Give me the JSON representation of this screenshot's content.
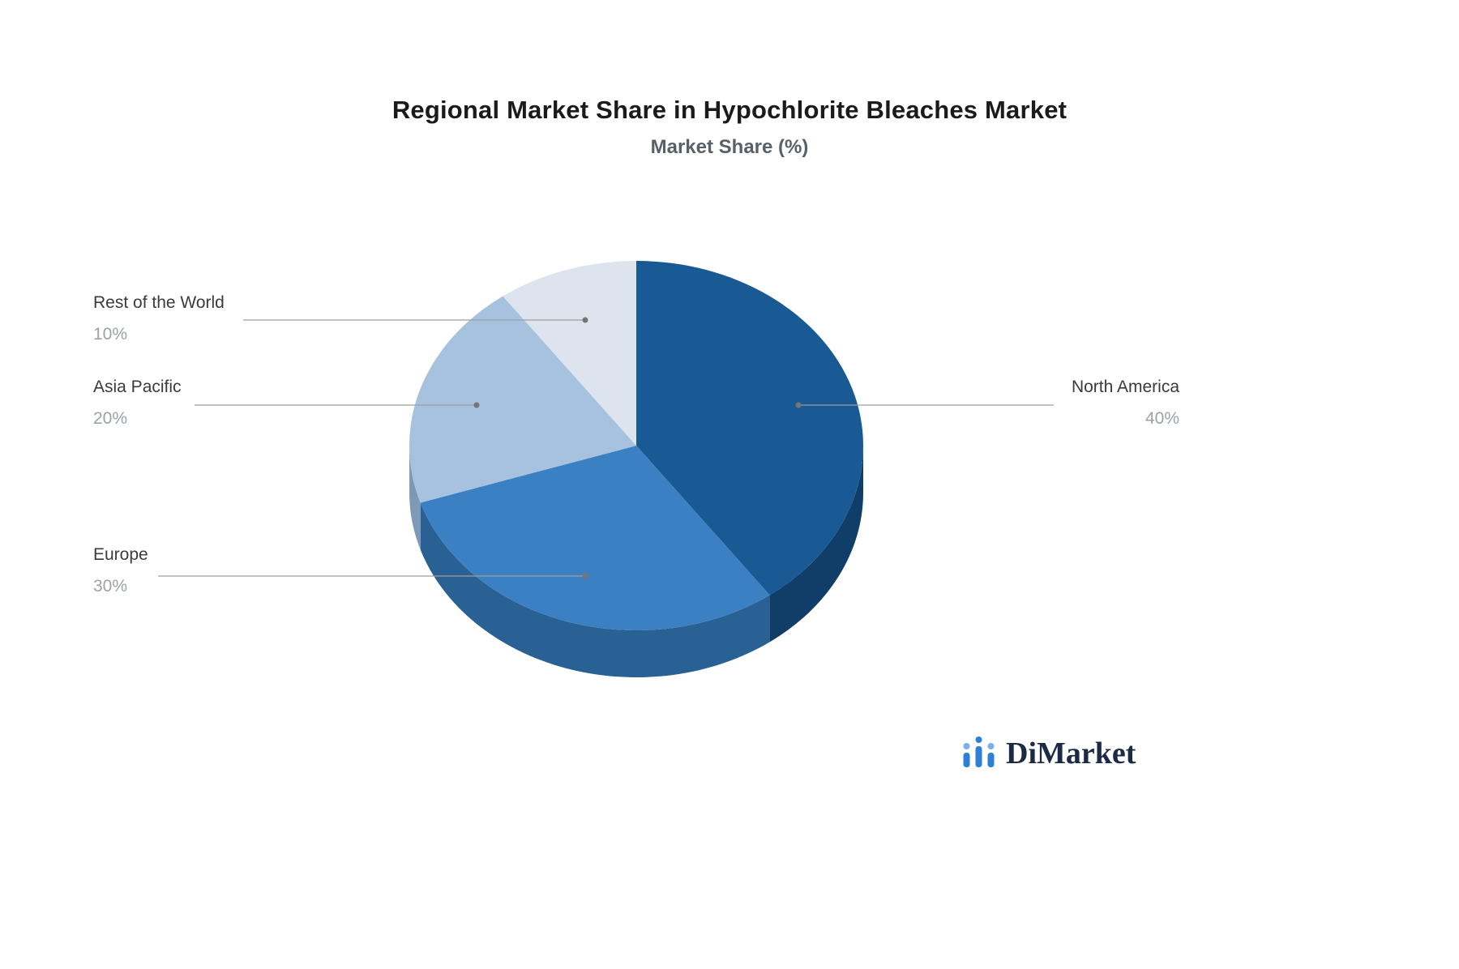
{
  "header": {
    "title": "Regional Market Share in Hypochlorite Bleaches Market",
    "subtitle": "Market Share (%)"
  },
  "chart_data": {
    "type": "pie",
    "title": "Regional Market Share in Hypochlorite Bleaches Market",
    "subtitle": "Market Share (%)",
    "unit": "%",
    "effect": "3d",
    "direction": "clockwise",
    "start_angle_deg": 0,
    "legend_position": "callout-labels",
    "slices": [
      {
        "label": "North America",
        "value": 40,
        "percent_label": "40%",
        "color": "#1a5a94",
        "side_color": "#103e68"
      },
      {
        "label": "Europe",
        "value": 30,
        "percent_label": "30%",
        "color": "#3b80c2",
        "side_color": "#2a6195"
      },
      {
        "label": "Asia Pacific",
        "value": 20,
        "percent_label": "20%",
        "color": "#a6c2df",
        "side_color": "#7e99b6"
      },
      {
        "label": "Rest of the World",
        "value": 10,
        "percent_label": "10%",
        "color": "#dde4ee",
        "side_color": "#b3bcc9"
      }
    ]
  },
  "branding": {
    "logo_text": "DiMarket",
    "icon": "mini-bar-chart-icon",
    "icon_color": "#2e7fd6",
    "icon_color_light": "#7db0e8",
    "text_color": "#1c2b45"
  }
}
